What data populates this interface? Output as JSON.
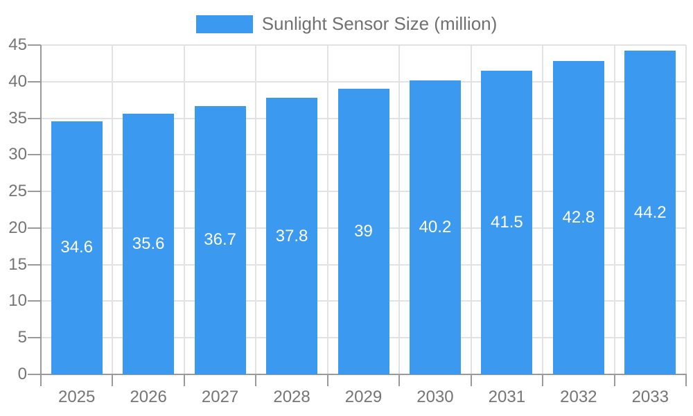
{
  "chart_data": {
    "type": "bar",
    "title": "",
    "legend": [
      "Sunlight Sensor Size (million)"
    ],
    "legend_position": "top-center",
    "categories": [
      "2025",
      "2026",
      "2027",
      "2028",
      "2029",
      "2030",
      "2031",
      "2032",
      "2033"
    ],
    "values": [
      34.6,
      35.6,
      36.7,
      37.8,
      39,
      40.2,
      41.5,
      42.8,
      44.2
    ],
    "value_labels": [
      "34.6",
      "35.6",
      "36.7",
      "37.8",
      "39",
      "40.2",
      "41.5",
      "42.8",
      "44.2"
    ],
    "xlabel": "",
    "ylabel": "",
    "ylim": [
      0,
      45
    ],
    "ytick_step": 5,
    "ytick_labels": [
      "0",
      "5",
      "10",
      "15",
      "20",
      "25",
      "30",
      "35",
      "40",
      "45"
    ],
    "grid": true,
    "colors": {
      "bar": "#3B99F0",
      "axis": "#999999",
      "gridline": "#E2E2E2",
      "tick_label": "#757575",
      "bar_label": "#FFFFFF",
      "legend_text": "#707070"
    }
  }
}
